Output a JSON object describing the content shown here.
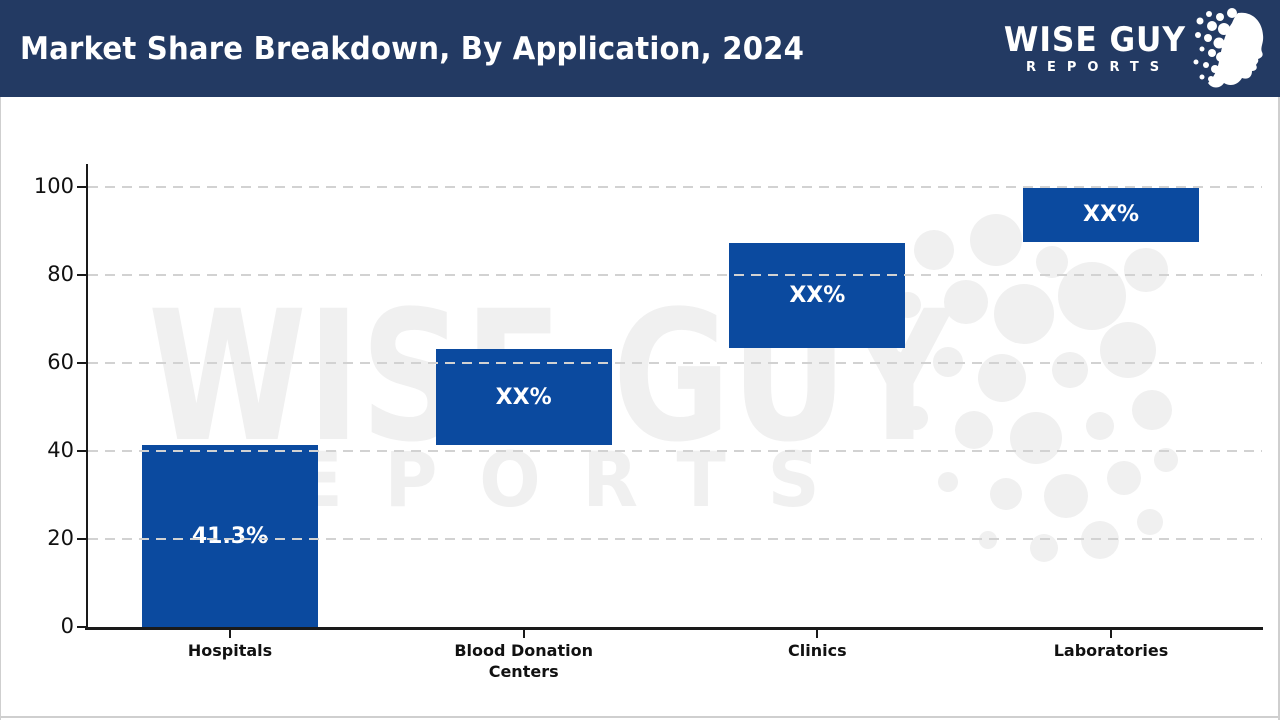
{
  "header": {
    "title": "Market Share Breakdown, By Application, 2024",
    "logo_line1": "WISE GUY",
    "logo_line2": "REPORTS"
  },
  "watermark": {
    "line1": "WISE GUY",
    "line2": "REPORTS"
  },
  "chart_data": {
    "type": "bar",
    "subtype": "waterfall",
    "title": "Market Share Breakdown, By Application, 2024",
    "categories": [
      "Hospitals",
      "Blood Donation Centers",
      "Clinics",
      "Laboratories"
    ],
    "series": [
      {
        "name": "Market share (%)",
        "segments": [
          {
            "category": "Hospitals",
            "start": 0,
            "end": 41.3,
            "label": "41.3%"
          },
          {
            "category": "Blood Donation Centers",
            "start": 41.3,
            "end": 63.2,
            "label": "XX%"
          },
          {
            "category": "Clinics",
            "start": 63.3,
            "end": 87.3,
            "label": "XX%"
          },
          {
            "category": "Laboratories",
            "start": 87.5,
            "end": 99.8,
            "label": "XX%"
          }
        ]
      }
    ],
    "xlabel": "",
    "ylabel": "",
    "yticks": [
      0,
      20,
      40,
      60,
      80,
      100
    ],
    "ylim": [
      0,
      105
    ],
    "grid": "horizontal-dashed-over-bars",
    "legend": "none",
    "colors": {
      "bar": "#0B4A9F",
      "bar_label": "#FFFFFF",
      "grid": "#D2D2D2",
      "axis": "#1A1A1A",
      "header_bg": "#233A63",
      "watermark": "#F0F0F0"
    }
  }
}
